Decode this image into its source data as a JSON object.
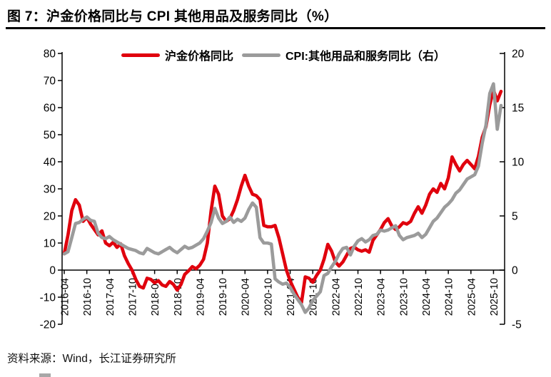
{
  "figure": {
    "title": "图 7：沪金价格同比与 CPI 其他用品及服务同比（%）",
    "source_note": "资料来源：Wind，长江证券研究所"
  },
  "chart_data": {
    "type": "line",
    "title": "沪金价格同比与 CPI 其他用品及服务同比（%）",
    "grid": false,
    "legend_position": "top",
    "x_start": "2016-04",
    "x_end": "2025-12",
    "x_frequency": "monthly",
    "x_tick_labels": [
      "2016-04",
      "2016-10",
      "2017-04",
      "2017-10",
      "2018-04",
      "2018-10",
      "2019-04",
      "2019-10",
      "2020-04",
      "2020-10",
      "2021-04",
      "2021-10",
      "2022-04",
      "2022-10",
      "2023-04",
      "2023-10",
      "2024-04",
      "2024-10",
      "2025-04",
      "2025-10"
    ],
    "left_axis": {
      "min": -20,
      "max": 80,
      "ticks": [
        80,
        70,
        60,
        50,
        40,
        30,
        20,
        10,
        0,
        -10,
        -20
      ]
    },
    "right_axis": {
      "min": -5,
      "max": 20,
      "ticks": [
        20,
        15,
        10,
        5,
        0,
        -5
      ]
    },
    "series": [
      {
        "name": "沪金价格同比",
        "axis": "left",
        "color": "#e0000d",
        "values": [
          6,
          13,
          22,
          26,
          24,
          18,
          19.5,
          17,
          15,
          13,
          14.5,
          10,
          9,
          10.3,
          8.4,
          9.7,
          5.3,
          2.4,
          0,
          -3.4,
          -6,
          -6.6,
          -3,
          -3.4,
          -4.7,
          -3.9,
          -5.5,
          -6,
          -4.2,
          -5.3,
          -7.4,
          -5.3,
          -1.6,
          -0.3,
          1.3,
          0.5,
          1.8,
          4,
          10,
          22,
          31,
          28,
          20,
          18,
          19,
          22,
          26,
          31,
          35,
          31,
          28,
          27.5,
          26,
          16.5,
          16,
          16,
          16.5,
          12,
          6,
          0,
          -4,
          -7,
          -10,
          -12,
          -2.5,
          -3,
          -4.5,
          -2,
          0,
          4,
          9.5,
          7,
          3,
          1.5,
          3,
          5.5,
          8,
          8.5,
          7.5,
          7,
          7.5,
          6.6,
          11,
          13,
          15,
          17.5,
          19,
          16.3,
          15,
          16,
          17.5,
          17,
          18,
          21,
          23.4,
          21,
          24,
          28,
          30,
          28.7,
          32,
          30,
          34,
          41.8,
          39,
          36.6,
          39,
          40.5,
          39,
          37.4,
          42,
          49,
          53,
          61,
          66.5,
          62.5,
          66
        ]
      },
      {
        "name": "CPI:其他用品和服务同比（右）",
        "axis": "right",
        "color": "#9b9b9b",
        "values": [
          1.5,
          1.7,
          3.0,
          4.3,
          4.4,
          4.7,
          4.9,
          4.6,
          4.5,
          3.4,
          3.0,
          2.9,
          3.1,
          2.8,
          2.6,
          2.4,
          2.2,
          2.0,
          1.9,
          1.8,
          1.6,
          1.5,
          2.0,
          1.8,
          1.6,
          1.5,
          1.7,
          1.9,
          2.1,
          1.8,
          1.6,
          1.9,
          2.2,
          2.0,
          2.1,
          2.3,
          2.5,
          2.9,
          3.6,
          4.4,
          5.7,
          4.8,
          4.3,
          4.5,
          4.9,
          4.4,
          4.7,
          4.5,
          4.8,
          5.6,
          6.2,
          5.8,
          3.0,
          2.5,
          2.5,
          2.4,
          -0.8,
          -1.1,
          -1.3,
          -1.2,
          -1.6,
          -2.2,
          -2.7,
          -3.2,
          -3.9,
          -3.5,
          -2.8,
          -2.4,
          -2.0,
          -0.5,
          -0.3,
          0.3,
          0.8,
          1.5,
          2.0,
          2.1,
          1.4,
          2.2,
          2.7,
          2.9,
          2.6,
          2.8,
          3.2,
          3.3,
          3.7,
          3.6,
          3.7,
          3.9,
          4.1,
          3.2,
          2.8,
          3.0,
          3.1,
          3.2,
          3.4,
          3.0,
          3.3,
          3.9,
          4.5,
          4.8,
          5.3,
          5.8,
          6.1,
          6.5,
          7.1,
          7.4,
          7.9,
          8.4,
          8.6,
          8.8,
          9.6,
          11.7,
          13.4,
          16.3,
          17.2,
          13.0,
          15.2
        ]
      }
    ]
  }
}
